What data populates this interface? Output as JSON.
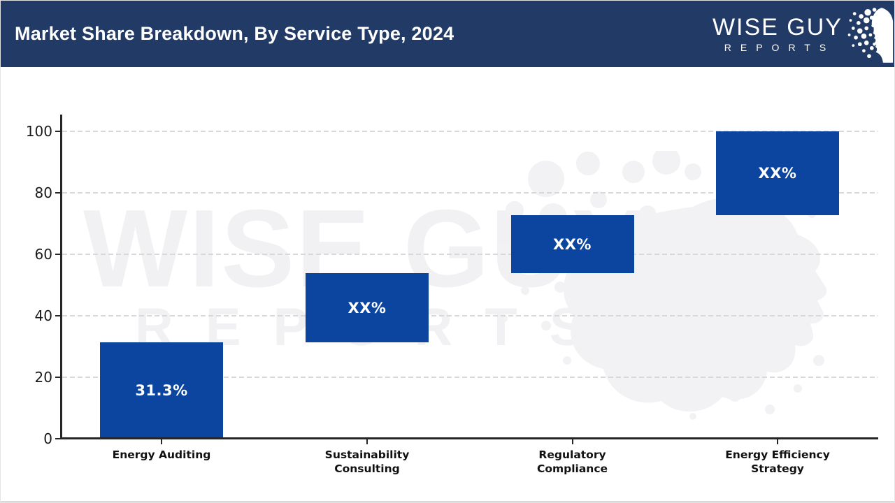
{
  "header": {
    "title": "Market Share Breakdown, By Service Type, 2024",
    "bg_color": "#213a66",
    "logo": {
      "line1": "WISE GUY",
      "line2": "REPORTS"
    }
  },
  "watermark": {
    "line1": "WISE GUY",
    "line2": "REPORTS"
  },
  "chart_data": {
    "type": "bar",
    "subtype": "waterfall",
    "title": "Market Share Breakdown, By Service Type, 2024",
    "categories": [
      "Energy Auditing",
      "Sustainability Consulting",
      "Regulatory Compliance",
      "Energy Efficiency Strategy"
    ],
    "category_label_lines": [
      [
        "Energy Auditing"
      ],
      [
        "Sustainability",
        "Consulting"
      ],
      [
        "Regulatory",
        "Compliance"
      ],
      [
        "Energy Efficiency",
        "Strategy"
      ]
    ],
    "segments": [
      {
        "category": "Energy Auditing",
        "start": 0,
        "end": 31.3,
        "label": "31.3%"
      },
      {
        "category": "Sustainability Consulting",
        "start": 31.3,
        "end": 53.8,
        "label": "XX%"
      },
      {
        "category": "Regulatory Compliance",
        "start": 53.8,
        "end": 72.7,
        "label": "XX%"
      },
      {
        "category": "Energy Efficiency Strategy",
        "start": 72.7,
        "end": 100,
        "label": "XX%"
      }
    ],
    "yticks": [
      0,
      20,
      40,
      60,
      80,
      100
    ],
    "ylim": [
      0,
      105
    ],
    "xlabel": "",
    "ylabel": "",
    "grid": "horizontal-dashed",
    "legend": "none",
    "bar_color": "#0b45a0",
    "bar_label_color": "#ffffff",
    "grid_color": "#d8d8d8",
    "axis_color": "#262626"
  }
}
